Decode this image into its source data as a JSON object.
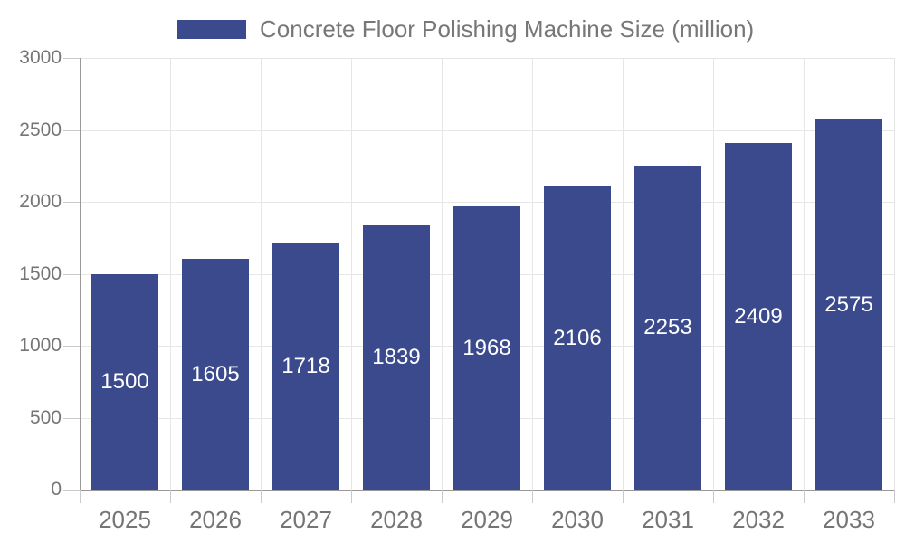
{
  "chart_data": {
    "type": "bar",
    "title": "Concrete Floor Polishing Machine Size (million)",
    "categories": [
      "2025",
      "2026",
      "2027",
      "2028",
      "2029",
      "2030",
      "2031",
      "2032",
      "2033"
    ],
    "values": [
      1500,
      1605,
      1718,
      1839,
      1968,
      2106,
      2253,
      2409,
      2575
    ],
    "xlabel": "",
    "ylabel": "",
    "ylim": [
      0,
      3000
    ],
    "yticks": [
      0,
      500,
      1000,
      1500,
      2000,
      2500,
      3000
    ],
    "grid": true,
    "legend_position": "top",
    "bar_labels_inside": true,
    "colors": {
      "bar": "#3a4a8c",
      "bar_label": "#ffffff",
      "axis_line": "#999999",
      "tick_line": "#c9c9c9",
      "grid_line": "#e6e6e6",
      "axis_text": "#757575",
      "legend_text": "#777777",
      "background": "#ffffff"
    }
  }
}
